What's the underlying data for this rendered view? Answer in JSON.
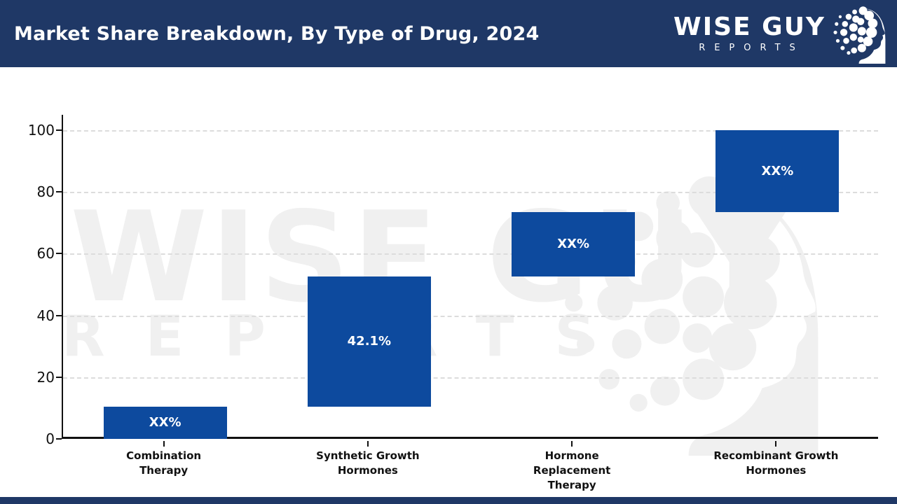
{
  "header": {
    "title": "Market Share Breakdown, By Type of Drug, 2024",
    "logo": {
      "line1": "WISE GUY",
      "line2": "REPORTS"
    }
  },
  "watermark": {
    "line1": "WISE GUY",
    "line2": "REPORTS"
  },
  "colors": {
    "header_bg": "#1f3866",
    "footer_bg": "#1f3866",
    "bar": "#0d4a9e",
    "bar_label_text": "#ffffff",
    "gridline": "#dcdcdc",
    "axis": "#111111",
    "watermark": "#f0f0f0",
    "title_text": "#ffffff"
  },
  "chart_data": {
    "type": "bar",
    "subtype": "waterfall-floating-bars",
    "title": "Market Share Breakdown, By Type of Drug, 2024",
    "categories": [
      "Combination\nTherapy",
      "Synthetic Growth\nHormones",
      "Hormone\nReplacement\nTherapy",
      "Recombinant Growth\nHormones"
    ],
    "bars": [
      {
        "category": "Combination Therapy",
        "start": 0,
        "end": 10.5,
        "label": "XX%"
      },
      {
        "category": "Synthetic Growth Hormones",
        "start": 10.5,
        "end": 52.6,
        "label": "42.1%"
      },
      {
        "category": "Hormone Replacement Therapy",
        "start": 52.6,
        "end": 73.5,
        "label": "XX%"
      },
      {
        "category": "Recombinant Growth Hormones",
        "start": 73.5,
        "end": 100,
        "label": "XX%"
      }
    ],
    "xlabel": "",
    "ylabel": "",
    "y_ticks": [
      0,
      20,
      40,
      60,
      80,
      100
    ],
    "ylim": [
      0,
      105
    ],
    "grid": "horizontal-dashed",
    "legend": "none"
  }
}
